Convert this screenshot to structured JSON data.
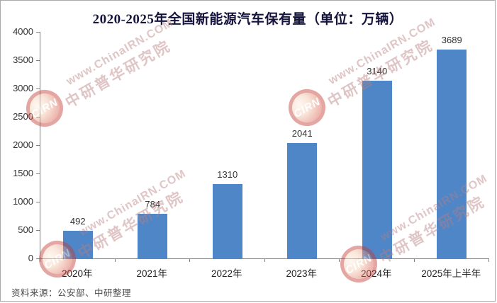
{
  "chart_data": {
    "type": "bar",
    "title": "2020-2025年全国新能源汽车保有量（单位：万辆）",
    "unit": "万辆",
    "categories": [
      "2020年",
      "2021年",
      "2022年",
      "2023年",
      "2024年",
      "2025年上半年"
    ],
    "values": [
      492,
      784,
      1310,
      2041,
      3140,
      3689
    ],
    "data_labels": [
      492,
      784,
      1310,
      2041,
      3140,
      3689
    ],
    "ylim": [
      0,
      4000
    ],
    "y_ticks": [
      0,
      500,
      1000,
      1500,
      2000,
      2500,
      3000,
      3500,
      4000
    ],
    "grid": false,
    "legend": "none",
    "bar_color": "#4e86c8"
  },
  "footer": {
    "source_note": "资料来源：公安部、中研整理"
  },
  "watermark": {
    "logo_text": "CIRN",
    "line1": "www.ChinaIRN.COM",
    "line2": "中研普华研究院",
    "color": "#b97f7f"
  }
}
